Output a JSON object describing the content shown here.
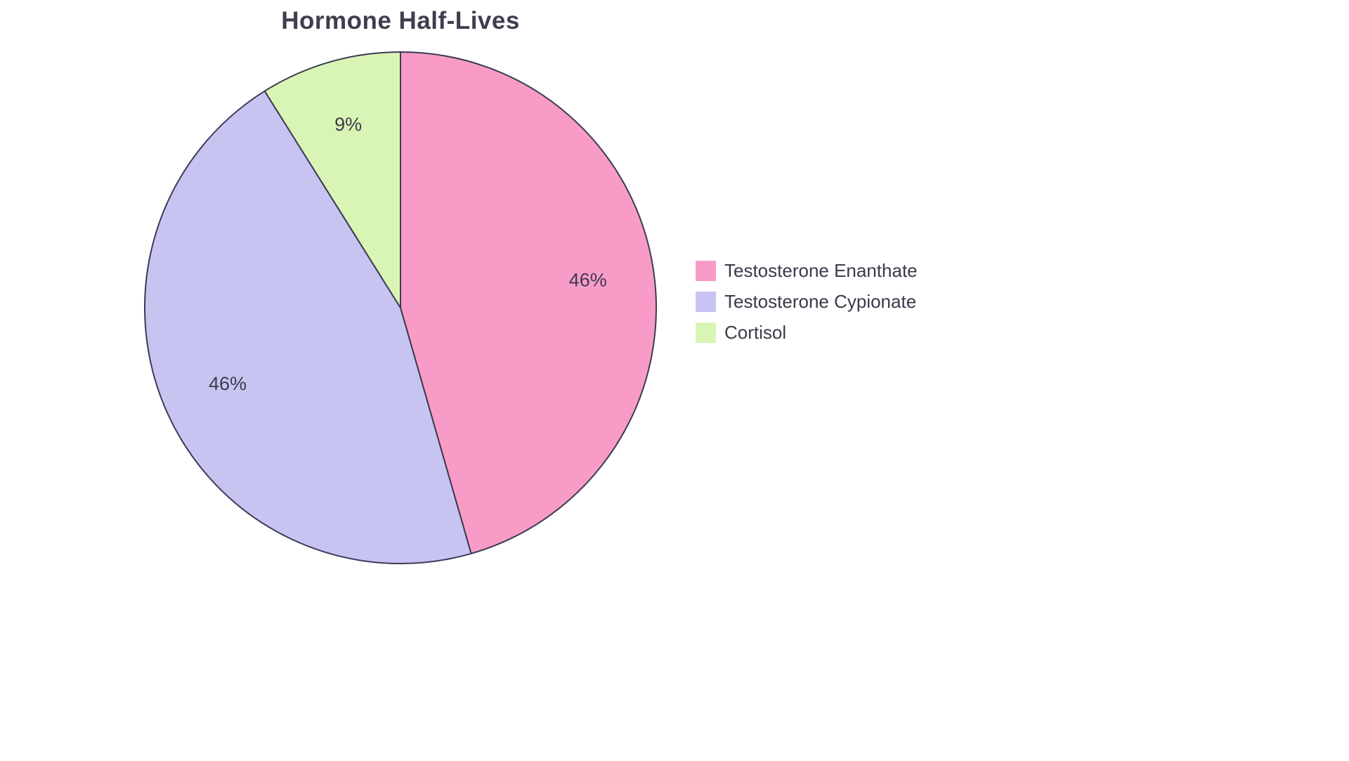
{
  "chart_data": {
    "type": "pie",
    "title": "Hormone Half-Lives",
    "direction": "clockwise",
    "start_angle_deg": 0,
    "legend_position": "right",
    "grid": false,
    "background_color": "#FFFFFF",
    "stroke_color": "#3B3B53",
    "label_color": "#3C3C4E",
    "title_color": "#3E3E4E",
    "slices": [
      {
        "label": "Testosterone Enanthate",
        "value": 46,
        "display_pct": "46%",
        "color": "#F89CC7"
      },
      {
        "label": "Testosterone Cypionate",
        "value": 46,
        "display_pct": "46%",
        "color": "#C8C4F2"
      },
      {
        "label": "Cortisol",
        "value": 9,
        "display_pct": "9%",
        "color": "#D9F5B5"
      }
    ]
  }
}
